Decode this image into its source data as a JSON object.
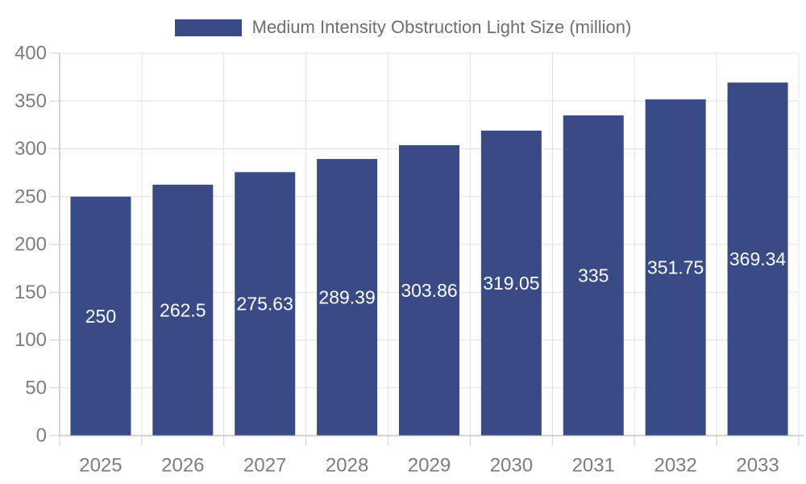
{
  "chart_data": {
    "type": "bar",
    "title": "Medium Intensity Obstruction Light Size (million)",
    "categories": [
      "2025",
      "2026",
      "2027",
      "2028",
      "2029",
      "2030",
      "2031",
      "2032",
      "2033"
    ],
    "values": [
      250,
      262.5,
      275.63,
      289.39,
      303.86,
      319.05,
      335,
      351.75,
      369.34
    ],
    "value_labels": [
      "250",
      "262.5",
      "275.63",
      "289.39",
      "303.86",
      "319.05",
      "335",
      "351.75",
      "369.34"
    ],
    "xlabel": "",
    "ylabel": "",
    "ylim": [
      0,
      400
    ],
    "ytick_interval": 50,
    "ytick_labels": [
      "0",
      "50",
      "100",
      "150",
      "200",
      "250",
      "300",
      "350",
      "400"
    ],
    "grid": true,
    "legend_position": "top",
    "colors": {
      "bar": "#394b87",
      "value_label": "#ffffff",
      "axis_text": "#7d7d7d",
      "legend_text": "#6e6e6e",
      "grid_line": "#e2e2e2",
      "axis_line": "#a8a8a8",
      "tick_mark": "#cfcfcf"
    }
  }
}
